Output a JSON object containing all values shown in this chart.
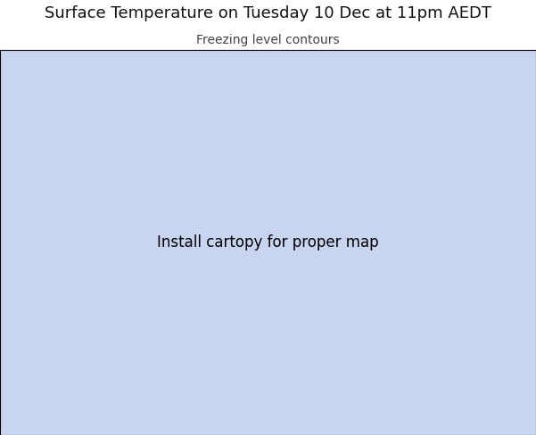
{
  "title": "Surface Temperature on Tuesday 10 Dec at 11pm AEDT",
  "subtitle": "Freezing level contours",
  "title_fontsize": 13,
  "subtitle_fontsize": 10,
  "background_color": "#ffffff",
  "map_bg": "#c8d4f0",
  "lon_min": 105,
  "lon_max": 185,
  "lat_min": -55,
  "lat_max": -5,
  "grid_color": "#aab4cc",
  "contour_color": "#cc0000",
  "contour_linewidth": 1.3,
  "contour_label_fontsize": 7.5,
  "border_color": "#888899",
  "header_line_color": "#aaaaaa"
}
